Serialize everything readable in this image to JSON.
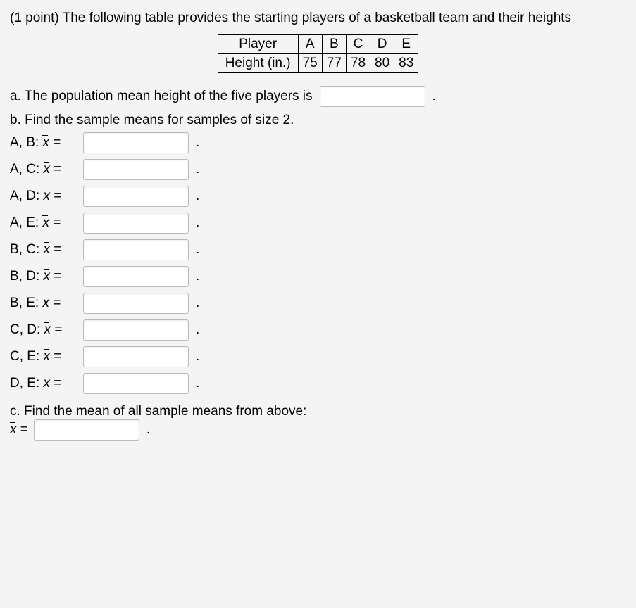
{
  "intro": "(1 point) The following table provides the starting players of a basketball team and their heights",
  "table": {
    "row1_label": "Player",
    "players": [
      "A",
      "B",
      "C",
      "D",
      "E"
    ],
    "row2_label": "Height (in.)",
    "heights": [
      "75",
      "77",
      "78",
      "80",
      "83"
    ]
  },
  "part_a": {
    "text": "a. The population mean height of the five players is",
    "value": ""
  },
  "part_b": {
    "text": "b. Find the sample means for samples of size 2.",
    "xbar_text": "x",
    "eq": " =",
    "items": [
      {
        "pair": "A, B",
        "value": ""
      },
      {
        "pair": "A, C",
        "value": ""
      },
      {
        "pair": "A, D",
        "value": ""
      },
      {
        "pair": "A, E",
        "value": ""
      },
      {
        "pair": "B, C",
        "value": ""
      },
      {
        "pair": "B, D",
        "value": ""
      },
      {
        "pair": "B, E",
        "value": ""
      },
      {
        "pair": "C, D",
        "value": ""
      },
      {
        "pair": "C, E",
        "value": ""
      },
      {
        "pair": "D, E",
        "value": ""
      }
    ]
  },
  "part_c": {
    "text": "c. Find the mean of all sample means from above:",
    "xbar_text": "x",
    "eq": " =",
    "value": ""
  },
  "period": "."
}
